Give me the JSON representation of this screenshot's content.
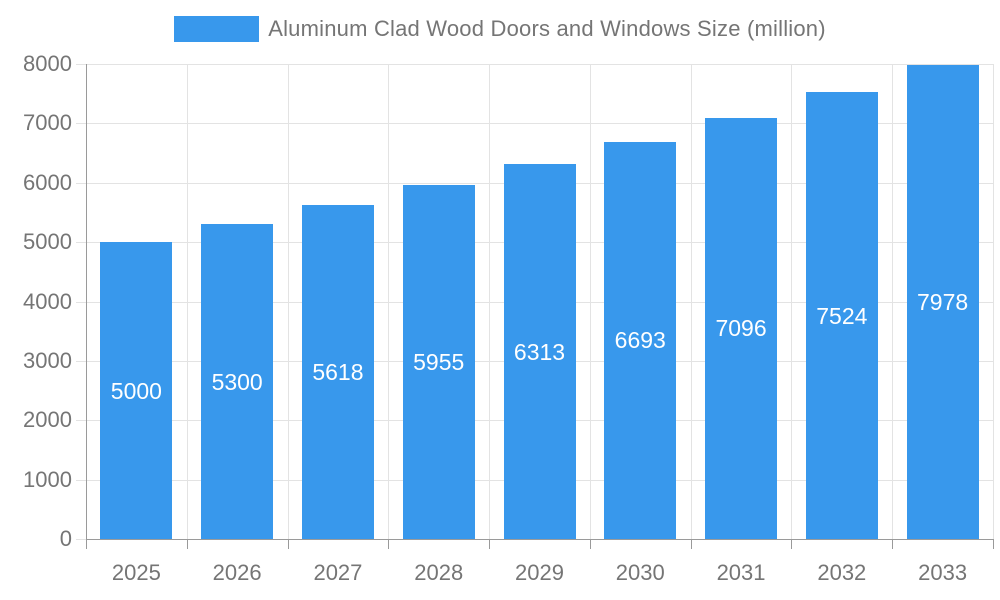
{
  "legend": {
    "label": "Aluminum Clad Wood Doors and Windows Size (million)"
  },
  "chart_data": {
    "type": "bar",
    "title": "Aluminum Clad Wood Doors and Windows Size (million)",
    "series_name": "Aluminum Clad Wood Doors and Windows Size (million)",
    "categories": [
      "2025",
      "2026",
      "2027",
      "2028",
      "2029",
      "2030",
      "2031",
      "2032",
      "2033"
    ],
    "values": [
      5000,
      5300,
      5618,
      5955,
      6313,
      6693,
      7096,
      7524,
      7978
    ],
    "value_labels": [
      "5000",
      "5300",
      "5618",
      "5955",
      "6313",
      "6693",
      "7096",
      "7524",
      "7978"
    ],
    "xlabel": "",
    "ylabel": "",
    "ylim": [
      0,
      8000
    ],
    "y_ticks": [
      0,
      1000,
      2000,
      3000,
      4000,
      5000,
      6000,
      7000,
      8000
    ],
    "y_tick_labels": [
      "0",
      "1000",
      "2000",
      "3000",
      "4000",
      "5000",
      "6000",
      "7000",
      "8000"
    ],
    "grid": true,
    "legend_position": "top",
    "value_label_position": "inside-center",
    "colors": {
      "bar": "#3898EC",
      "value_label": "#FFFFFF",
      "axis_text": "#757575",
      "axis_line": "#9A9A9A",
      "gridline": "#E3E3E3",
      "background": "#FFFFFF"
    }
  }
}
